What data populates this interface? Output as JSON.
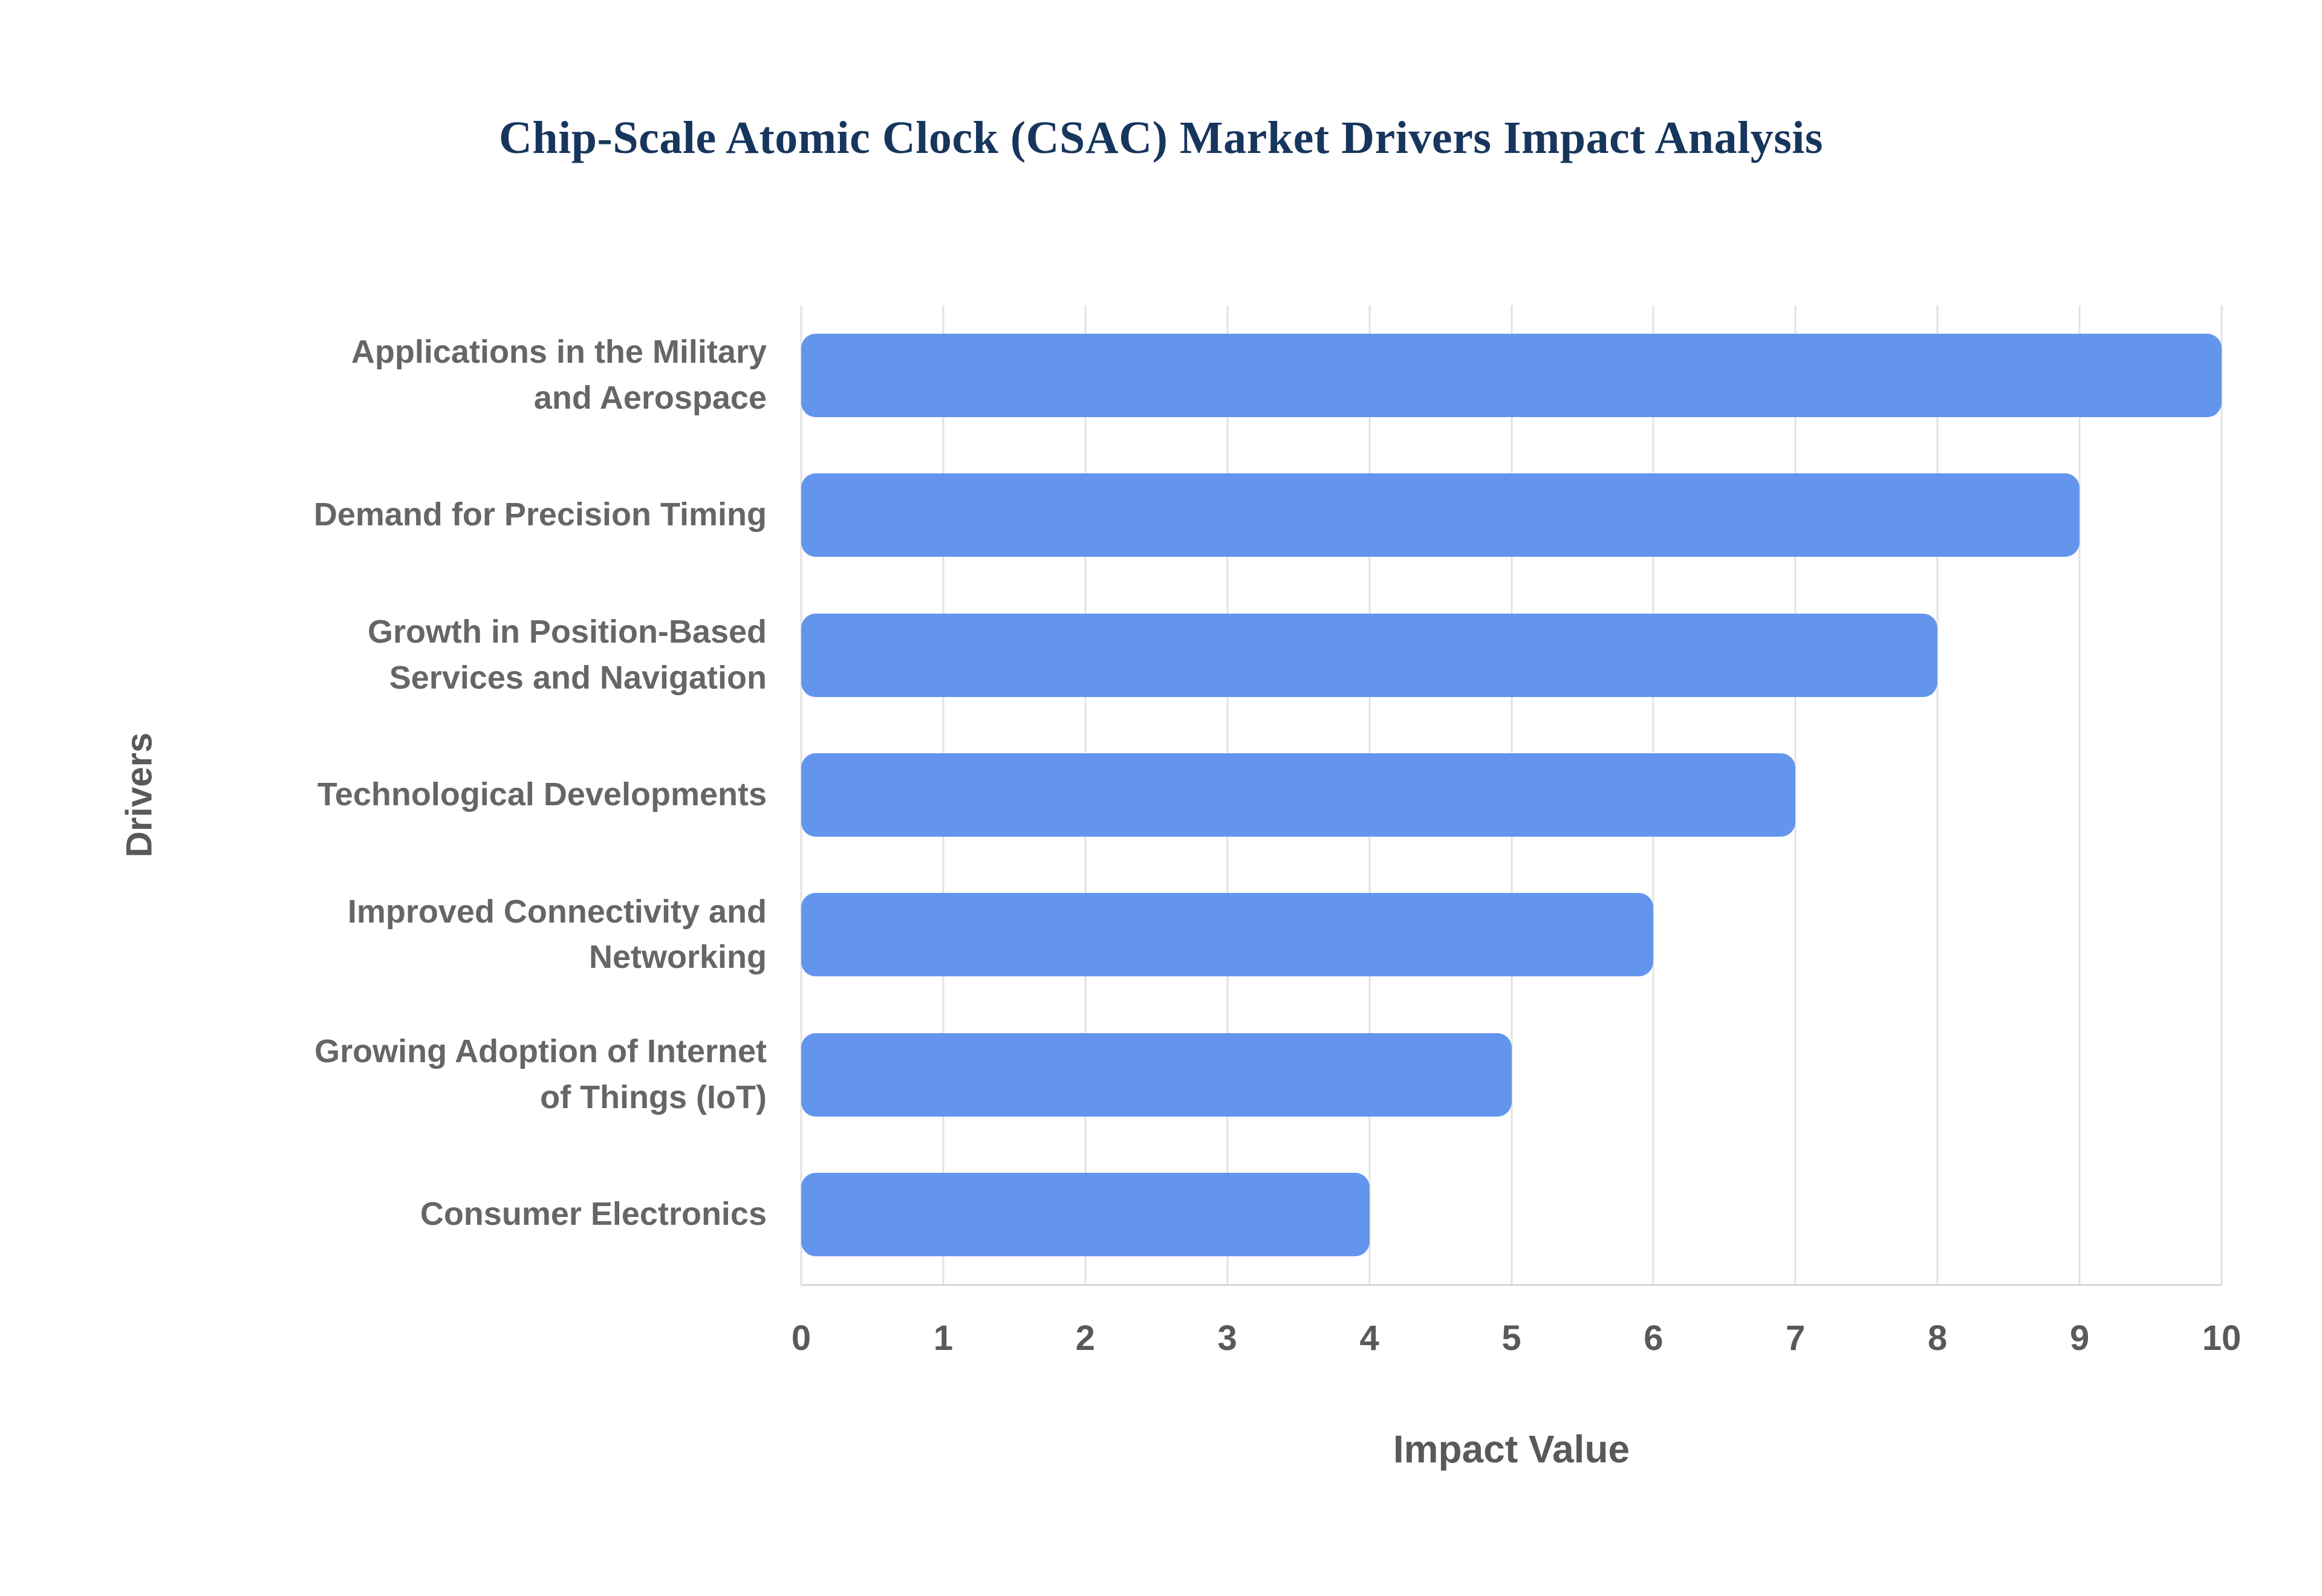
{
  "title": "Chip-Scale Atomic Clock (CSAC) Market Drivers Impact Analysis",
  "chart_data": {
    "type": "bar",
    "orientation": "horizontal",
    "title": "Chip-Scale Atomic Clock (CSAC) Market Drivers Impact Analysis",
    "categories": [
      "Applications in the Military\nand Aerospace",
      "Demand for Precision Timing",
      "Growth in Position-Based\nServices and Navigation",
      "Technological Developments",
      "Improved Connectivity and\nNetworking",
      "Growing Adoption of Internet\nof Things (IoT)",
      "Consumer Electronics"
    ],
    "values": [
      10,
      9,
      8,
      7,
      6,
      5,
      4
    ],
    "xlabel": "Impact Value",
    "ylabel": "Drivers",
    "xlim": [
      0,
      10
    ],
    "xticks": [
      0,
      1,
      2,
      3,
      4,
      5,
      6,
      7,
      8,
      9,
      10
    ],
    "grid": true,
    "legend": false,
    "bar_color": "#6495ED",
    "grid_color": "#e2e2e2",
    "title_color": "#17365d",
    "label_color": "#666666"
  }
}
